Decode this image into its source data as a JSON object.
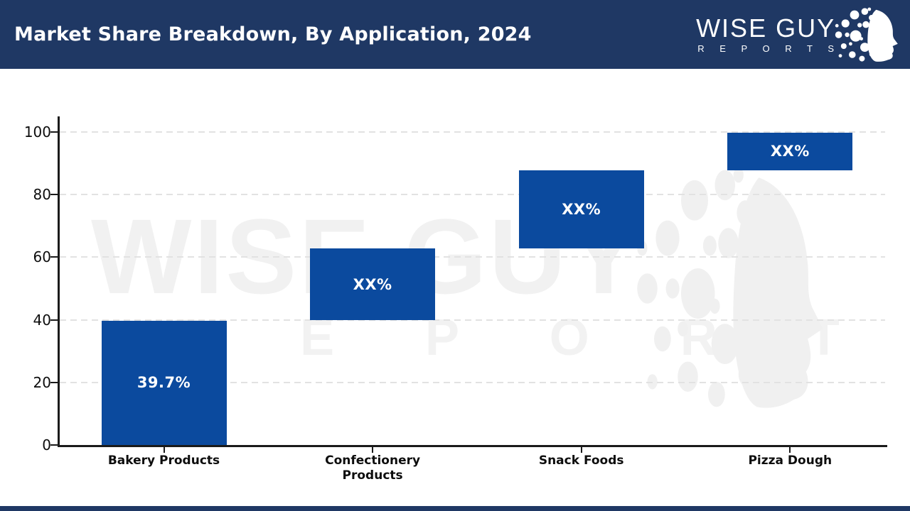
{
  "header": {
    "title": "Market Share Breakdown, By Application, 2024",
    "bg_color": "#1f3864",
    "logo": {
      "wordmark": "WISE GUY",
      "subtext": "R E P O R T S",
      "head_icon": "dotted-head-profile"
    }
  },
  "chart_data": {
    "type": "bar",
    "variant": "waterfall",
    "title": "Market Share Breakdown, By Application, 2024",
    "categories": [
      "Bakery Products",
      "Confectionery Products",
      "Snack Foods",
      "Pizza Dough"
    ],
    "segments": [
      {
        "category": "Bakery Products",
        "start": 0,
        "end": 39.7,
        "label": "39.7%"
      },
      {
        "category": "Confectionery Products",
        "start": 39.9,
        "end": 62.7,
        "label": "XX%"
      },
      {
        "category": "Snack Foods",
        "start": 62.7,
        "end": 87.8,
        "label": "XX%"
      },
      {
        "category": "Pizza Dough",
        "start": 87.8,
        "end": 99.8,
        "label": "XX%"
      }
    ],
    "ylim": [
      0,
      100
    ],
    "yticks": [
      0,
      20,
      40,
      60,
      80,
      100
    ],
    "grid": {
      "horizontal": true,
      "style": "dashed",
      "color": "#e2e2e2"
    },
    "bar_color": "#0b4a9e",
    "bar_label_color": "#ffffff",
    "axis_color": "#1a1a1a",
    "legend": "none"
  },
  "watermark": {
    "wordmark": "WISE GUY",
    "subtext": "R E P O R T S"
  },
  "footer": {
    "bg_color": "#1f3864"
  }
}
